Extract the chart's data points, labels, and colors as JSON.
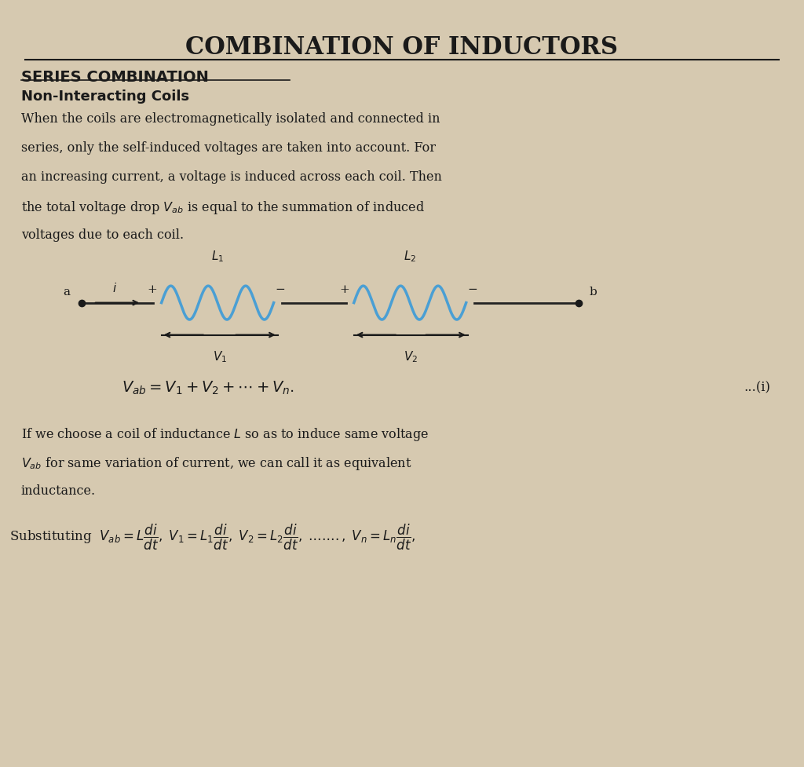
{
  "title": "COMBINATION OF INDUCTORS",
  "section1": "SERIES COMBINATION",
  "section2": "Non-Interacting Coils",
  "paragraph1": "When the coils are electromagnetically isolated and connected in\nseries, only the self-induced voltages are taken into account. For\nan increasing current, a voltage is induced across each coil. Then\nthe total voltage drop $V_{ab}$ is equal to the summation of induced\nvoltages due to each coil.",
  "equation1": "$V_{ab} = V_1 + V_2 + \\cdots + V_n.$",
  "equation1_label": "...(i)",
  "paragraph2": "If we choose a coil of inductance $L$ so as to induce same voltage\n$V_{ab}$ for same variation of current, we can call it as equivalent\ninductance.",
  "equation2": "Substituting  $V_{ab} = L\\dfrac{di}{dt},\\, V_1 = L_1\\dfrac{di}{dt},\\, V_2 = L_2\\dfrac{di}{dt},\\,\\ldots\\ldots.,\\, V_n = L_n\\dfrac{di}{dt},$",
  "bg_color": "#d6c9b0",
  "text_color": "#1a1a1a",
  "coil_color": "#4a9fd4",
  "line_color": "#222222"
}
